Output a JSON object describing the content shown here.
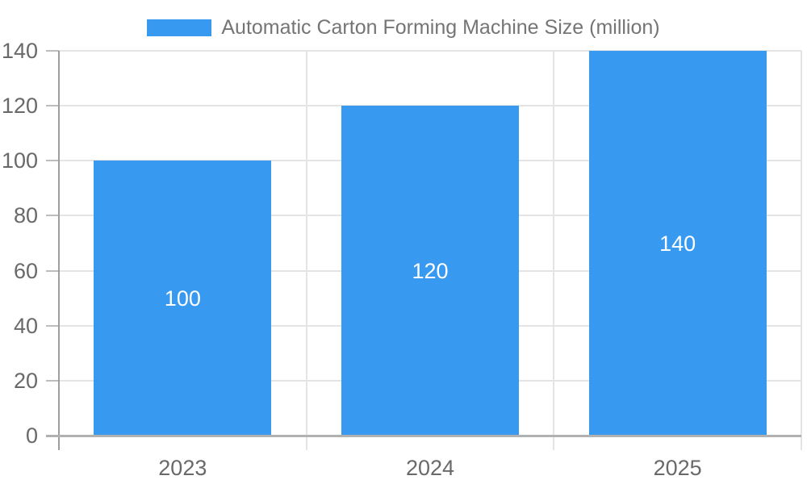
{
  "legend": {
    "label": "Automatic Carton Forming Machine Size (million)",
    "swatch_color": "#3899F0"
  },
  "chart_data": {
    "type": "bar",
    "title": "Automatic Carton Forming Machine Size (million)",
    "series": [
      {
        "name": "Automatic Carton Forming Machine Size (million)",
        "values": [
          100,
          120,
          140
        ]
      }
    ],
    "categories": [
      "2023",
      "2024",
      "2025"
    ],
    "data_labels": [
      "100",
      "120",
      "140"
    ],
    "xlabel": "",
    "ylabel": "",
    "ylim": [
      0,
      140
    ],
    "yticks": [
      0,
      20,
      40,
      60,
      80,
      100,
      120,
      140
    ],
    "grid": true,
    "legend_position": "top",
    "bar_color": "#3899F0",
    "data_label_color": "#ffffff",
    "axis_label_color": "#696969",
    "gridline_color": "#e4e4e4"
  }
}
